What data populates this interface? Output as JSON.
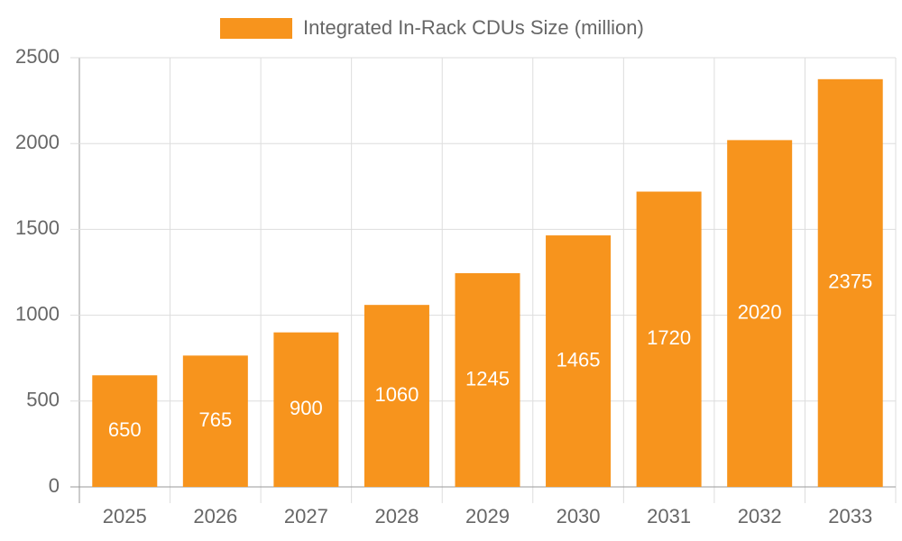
{
  "chart_data": {
    "type": "bar",
    "legend_label": "Integrated In-Rack CDUs Size (million)",
    "categories": [
      "2025",
      "2026",
      "2027",
      "2028",
      "2029",
      "2030",
      "2031",
      "2032",
      "2033"
    ],
    "values": [
      650,
      765,
      900,
      1060,
      1245,
      1465,
      1720,
      2020,
      2375
    ],
    "color": "#f7941d",
    "ylim": [
      0,
      2500
    ],
    "yticks": [
      0,
      500,
      1000,
      1500,
      2000,
      2500
    ],
    "grid": true
  }
}
